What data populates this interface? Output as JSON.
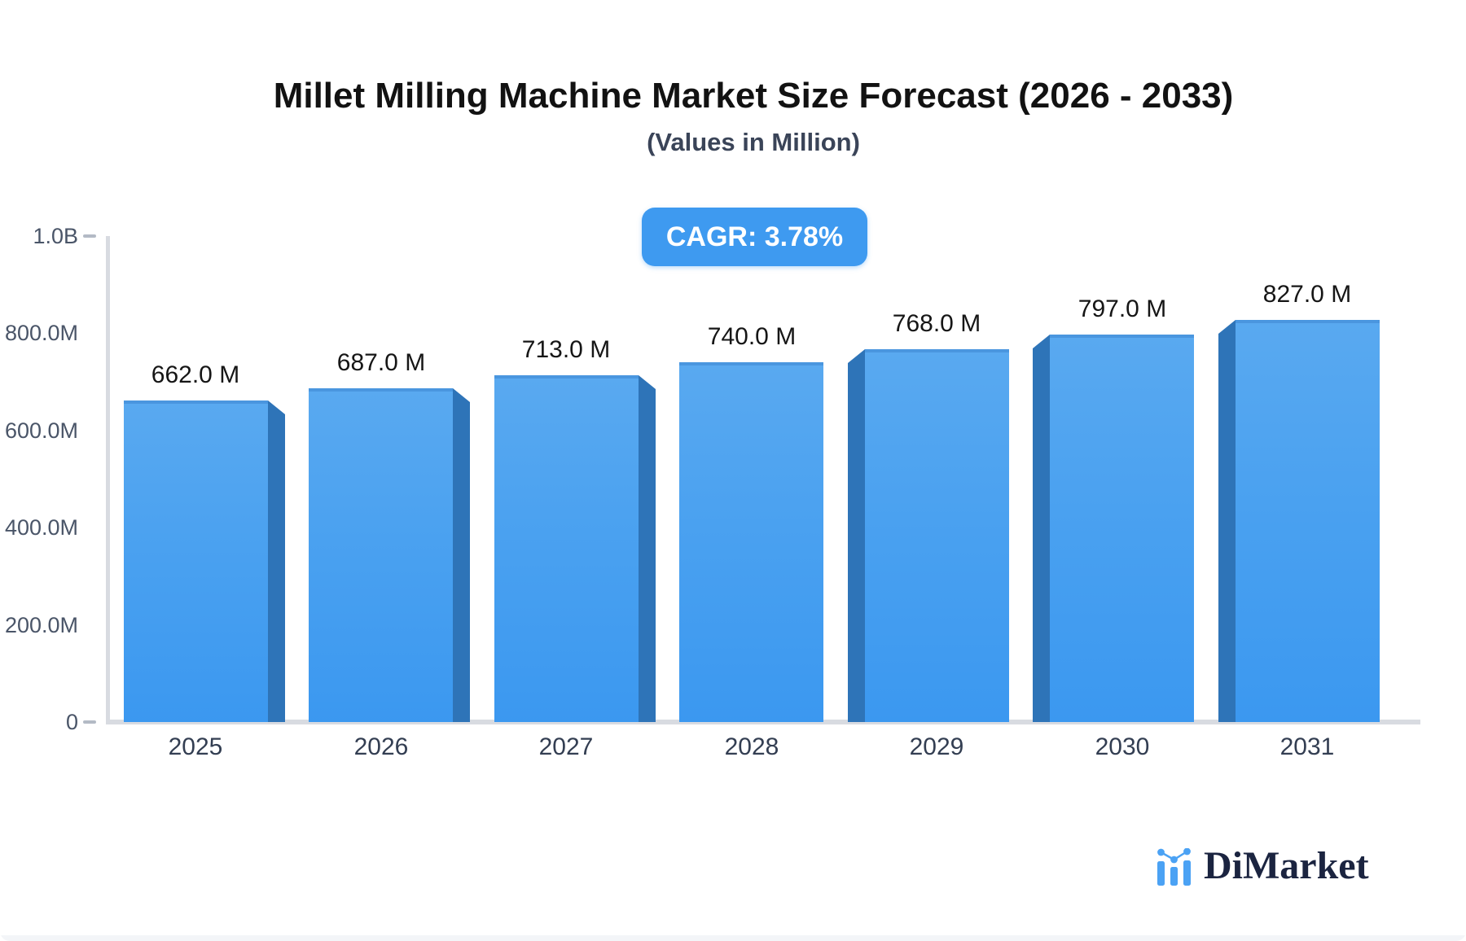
{
  "header": {
    "title": "Millet Milling Machine Market Size Forecast (2026 - 2033)",
    "subtitle": "(Values in Million)",
    "cagr_badge": "CAGR: 3.78%"
  },
  "chart_data": {
    "type": "bar",
    "title": "Millet Milling Machine Market Size Forecast (2026 - 2033)",
    "subtitle": "(Values in Million)",
    "cagr_label": "CAGR: 3.78%",
    "categories": [
      "2025",
      "2026",
      "2027",
      "2028",
      "2029",
      "2030",
      "2031"
    ],
    "values": [
      662.0,
      687.0,
      713.0,
      740.0,
      768.0,
      797.0,
      827.0
    ],
    "value_labels": [
      "662.0 M",
      "687.0 M",
      "713.0 M",
      "740.0 M",
      "768.0 M",
      "797.0 M",
      "827.0 M"
    ],
    "xlabel": "",
    "ylabel": "",
    "ylim": [
      0,
      1000
    ],
    "yticks": [
      {
        "label": "1.0B",
        "value": 1000,
        "dash": true
      },
      {
        "label": "800.0M",
        "value": 800,
        "dash": false
      },
      {
        "label": "600.0M",
        "value": 600,
        "dash": false
      },
      {
        "label": "400.0M",
        "value": 400,
        "dash": false
      },
      {
        "label": "200.0M",
        "value": 200,
        "dash": false
      },
      {
        "label": "0",
        "value": 0,
        "dash": true
      }
    ],
    "grid": false,
    "legend": false,
    "colors": {
      "bar_front_top": "#59A9F0",
      "bar_front_bottom": "#3B98F0",
      "bar_side": "#2E74B8",
      "bar_top_edge": "#4A96DF",
      "badge_bg": "#3E9AF0",
      "axis_line": "#D8DBE1"
    }
  },
  "logo": {
    "text": "DiMarket",
    "icon": "bar-chart-logo-icon",
    "icon_color": "#4BA2F4",
    "text_color": "#1B2440"
  }
}
